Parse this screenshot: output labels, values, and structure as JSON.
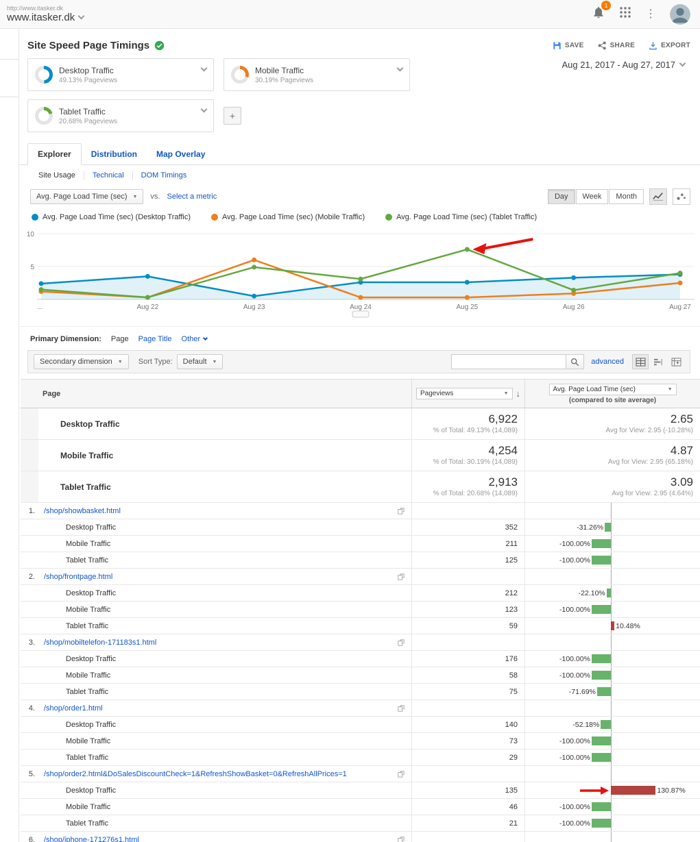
{
  "topbar": {
    "url": "http://www.itasker.dk",
    "account_name": "www.itasker.dk",
    "notification_badge": "1"
  },
  "header": {
    "title": "Site Speed Page Timings",
    "save_label": "SAVE",
    "share_label": "SHARE",
    "export_label": "EXPORT"
  },
  "date_range": "Aug 21, 2017 - Aug 27, 2017",
  "segments": [
    {
      "name": "Desktop Traffic",
      "subtitle": "49.13% Pageviews",
      "pct": 49.13,
      "color": "#058dc7"
    },
    {
      "name": "Mobile Traffic",
      "subtitle": "30.19% Pageviews",
      "pct": 30.19,
      "color": "#ee7e1e"
    },
    {
      "name": "Tablet Traffic",
      "subtitle": "20.68% Pageviews",
      "pct": 20.68,
      "color": "#64a83e"
    }
  ],
  "add_segment_label": "+",
  "tabs": {
    "explorer": "Explorer",
    "distribution": "Distribution",
    "map_overlay": "Map Overlay"
  },
  "subtabs": {
    "site_usage": "Site Usage",
    "technical": "Technical",
    "dom_timings": "DOM Timings"
  },
  "metric_bar": {
    "metric_selector": "Avg. Page Load Time (sec)",
    "vs_label": "vs.",
    "select_metric": "Select a metric",
    "day": "Day",
    "week": "Week",
    "month": "Month"
  },
  "legend": [
    {
      "label": "Avg. Page Load Time (sec) (Desktop Traffic)",
      "color": "#058dc7"
    },
    {
      "label": "Avg. Page Load Time (sec) (Mobile Traffic)",
      "color": "#ee7e1e"
    },
    {
      "label": "Avg. Page Load Time (sec) (Tablet Traffic)",
      "color": "#64a83e"
    }
  ],
  "chart_data": {
    "type": "line",
    "x": [
      "...",
      "Aug 22",
      "Aug 23",
      "Aug 24",
      "Aug 25",
      "Aug 26",
      "Aug 27"
    ],
    "ylim": [
      0,
      10
    ],
    "yticks": [
      5,
      10
    ],
    "legend_position": "top",
    "grid": true,
    "series": [
      {
        "name": "Avg. Page Load Time (sec) (Desktop Traffic)",
        "color": "#058dc7",
        "area": true,
        "values": [
          2.4,
          3.5,
          0.5,
          2.6,
          2.6,
          3.3,
          3.8
        ]
      },
      {
        "name": "Avg. Page Load Time (sec) (Mobile Traffic)",
        "color": "#ee7e1e",
        "area": false,
        "values": [
          1.2,
          0.3,
          6.0,
          0.3,
          0.3,
          0.9,
          2.5
        ]
      },
      {
        "name": "Avg. Page Load Time (sec) (Tablet Traffic)",
        "color": "#64a83e",
        "area": false,
        "values": [
          1.5,
          0.3,
          4.9,
          3.1,
          7.6,
          1.4,
          4.0
        ]
      }
    ],
    "annotation": "red arrow pointing at Tablet Traffic peak on Aug 25"
  },
  "primary_dimension": {
    "label": "Primary Dimension:",
    "active": "Page",
    "alt1": "Page Title",
    "alt2": "Other"
  },
  "toolbar": {
    "secondary_dimension": "Secondary dimension",
    "sort_type_label": "Sort Type:",
    "sort_type_value": "Default",
    "search_value": "",
    "advanced": "advanced"
  },
  "table": {
    "columns": {
      "page": "Page",
      "pageviews": "Pageviews",
      "avg": "Avg. Page Load Time (sec)",
      "avg_note": "(compared to site average)"
    },
    "summary_rows": [
      {
        "name": "Desktop Traffic",
        "pageviews": "6,922",
        "pageviews_note": "% of Total: 49.13% (14,089)",
        "avg": "2.65",
        "avg_note": "Avg for View: 2.95 (-10.28%)"
      },
      {
        "name": "Mobile Traffic",
        "pageviews": "4,254",
        "pageviews_note": "% of Total: 30.19% (14,089)",
        "avg": "4.87",
        "avg_note": "Avg for View: 2.95 (65.18%)"
      },
      {
        "name": "Tablet Traffic",
        "pageviews": "2,913",
        "pageviews_note": "% of Total: 20.68% (14,089)",
        "avg": "3.09",
        "avg_note": "Avg for View: 2.95 (4.64%)"
      }
    ],
    "rows": [
      {
        "index": "1.",
        "page": "/shop/showbasket.html",
        "segments": [
          {
            "name": "Desktop Traffic",
            "pageviews": "352",
            "delta_label": "-31.26%",
            "delta": -31.26
          },
          {
            "name": "Mobile Traffic",
            "pageviews": "211",
            "delta_label": "-100.00%",
            "delta": -100
          },
          {
            "name": "Tablet Traffic",
            "pageviews": "125",
            "delta_label": "-100.00%",
            "delta": -100
          }
        ]
      },
      {
        "index": "2.",
        "page": "/shop/frontpage.html",
        "segments": [
          {
            "name": "Desktop Traffic",
            "pageviews": "212",
            "delta_label": "-22.10%",
            "delta": -22.1
          },
          {
            "name": "Mobile Traffic",
            "pageviews": "123",
            "delta_label": "-100.00%",
            "delta": -100
          },
          {
            "name": "Tablet Traffic",
            "pageviews": "59",
            "delta_label": "10.48%",
            "delta": 10.48
          }
        ]
      },
      {
        "index": "3.",
        "page": "/shop/mobiltelefon-171183s1.html",
        "segments": [
          {
            "name": "Desktop Traffic",
            "pageviews": "176",
            "delta_label": "-100.00%",
            "delta": -100
          },
          {
            "name": "Mobile Traffic",
            "pageviews": "58",
            "delta_label": "-100.00%",
            "delta": -100
          },
          {
            "name": "Tablet Traffic",
            "pageviews": "75",
            "delta_label": "-71.69%",
            "delta": -71.69
          }
        ]
      },
      {
        "index": "4.",
        "page": "/shop/order1.html",
        "segments": [
          {
            "name": "Desktop Traffic",
            "pageviews": "140",
            "delta_label": "-52.18%",
            "delta": -52.18
          },
          {
            "name": "Mobile Traffic",
            "pageviews": "73",
            "delta_label": "-100.00%",
            "delta": -100
          },
          {
            "name": "Tablet Traffic",
            "pageviews": "29",
            "delta_label": "-100.00%",
            "delta": -100
          }
        ]
      },
      {
        "index": "5.",
        "page": "/shop/order2.html&DoSalesDiscountCheck=1&RefreshShowBasket=0&RefreshAllPrices=1",
        "segments": [
          {
            "name": "Desktop Traffic",
            "pageviews": "135",
            "delta_label": "130.87%",
            "delta": 130.87,
            "arrow": true
          },
          {
            "name": "Mobile Traffic",
            "pageviews": "46",
            "delta_label": "-100.00%",
            "delta": -100
          },
          {
            "name": "Tablet Traffic",
            "pageviews": "21",
            "delta_label": "-100.00%",
            "delta": -100
          }
        ]
      },
      {
        "index": "6.",
        "page": "/shop/iphone-171276s1.html",
        "segments": []
      }
    ]
  },
  "colors": {
    "link": "#1155cc",
    "bar_green": "#68b36b",
    "bar_red": "#b2423e",
    "arrow_red": "#e8110d"
  },
  "icons": {
    "topbar": [
      "bell-icon",
      "apps-grid-icon",
      "vertical-dots-icon",
      "user-avatar"
    ],
    "header": [
      "verified-check-icon",
      "floppy-icon",
      "share-icon",
      "download-icon"
    ],
    "toolbar": [
      "search-icon",
      "table-view-icon",
      "comparison-view-icon",
      "pivot-view-icon"
    ],
    "chart": [
      "line-chart-icon",
      "motion-chart-icon",
      "red-arrow-annotation"
    ]
  }
}
